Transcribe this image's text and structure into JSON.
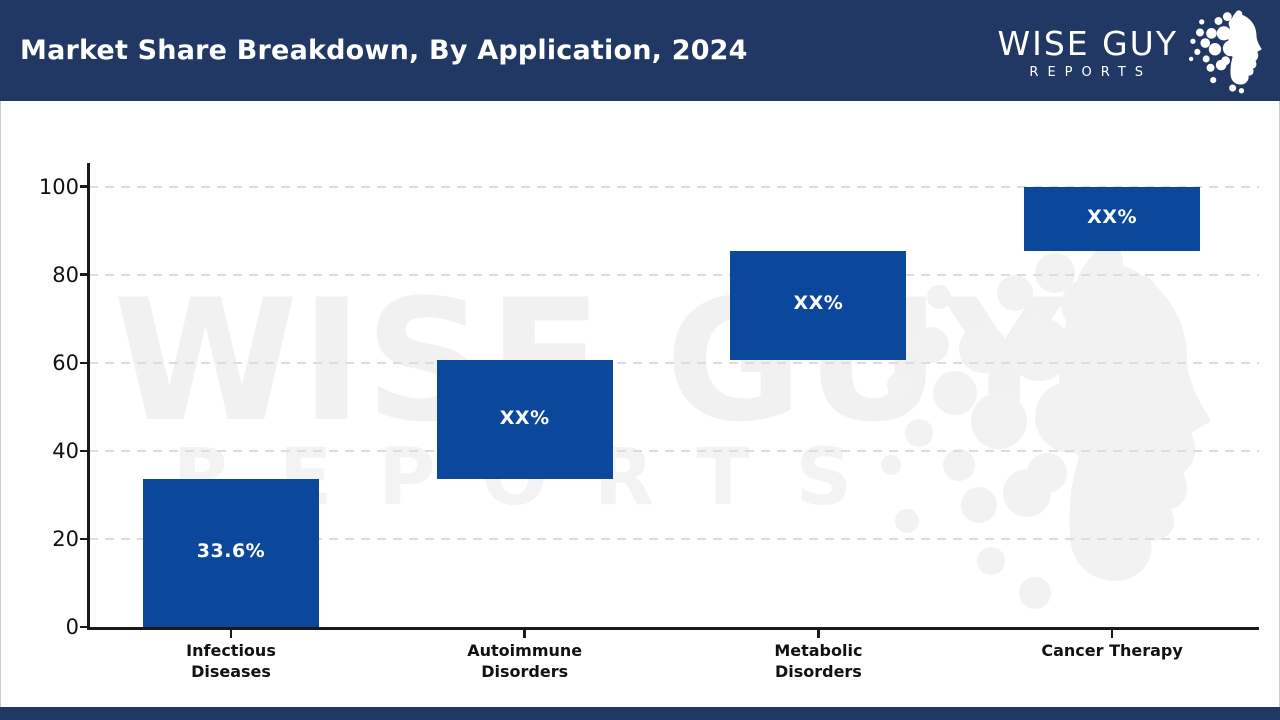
{
  "header": {
    "title": "Market Share Breakdown, By Application, 2024",
    "logo": {
      "wordmark": "WISE GUY",
      "subtext": "REPORTS"
    }
  },
  "watermark": {
    "wordmark": "WISE GUY",
    "subtext": "REPORTS"
  },
  "chart_data": {
    "type": "bar",
    "subtype": "waterfall",
    "title": "Market Share Breakdown, By Application, 2024",
    "categories": [
      {
        "lines": [
          "Infectious",
          "Diseases"
        ]
      },
      {
        "lines": [
          "Autoimmune",
          "Disorders"
        ]
      },
      {
        "lines": [
          "Metabolic",
          "Disorders"
        ]
      },
      {
        "lines": [
          "Cancer Therapy"
        ]
      }
    ],
    "segments": [
      {
        "category": "Infectious Diseases",
        "start": 0,
        "end": 33.6,
        "label": "33.6%"
      },
      {
        "category": "Autoimmune Disorders",
        "start": 33.6,
        "end": 60.6,
        "label": "XX%"
      },
      {
        "category": "Metabolic Disorders",
        "start": 60.6,
        "end": 85.5,
        "label": "XX%"
      },
      {
        "category": "Cancer Therapy",
        "start": 85.5,
        "end": 100,
        "label": "XX%"
      }
    ],
    "yticks": [
      0,
      20,
      40,
      60,
      80,
      100
    ],
    "ylim": [
      0,
      105
    ],
    "grid": "horizontal-dashed",
    "legend": "none",
    "bar_color": "#0B479A",
    "bar_label_color": "#FFFFFF",
    "grid_color": "#dcdcdc",
    "axis_color": "#1a1a1a"
  },
  "colors": {
    "header_bg": "#213864",
    "footer_bg": "#213864",
    "watermark": "#f1f1f1"
  }
}
